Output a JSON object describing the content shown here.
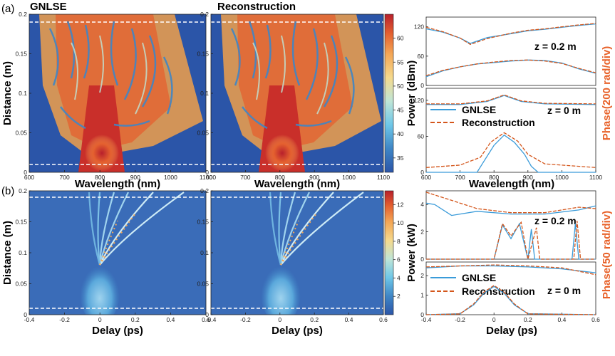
{
  "figure": {
    "panel_a_label": "(a)",
    "panel_b_label": "(b)",
    "left_title": "GNLSE",
    "middle_title": "Reconstruction"
  },
  "colors": {
    "gnlse": "#3a9bd9",
    "reconstruction": "#d4561b",
    "phase_axis": "#e8622a",
    "colormap": [
      "#2b55a8",
      "#3f86c6",
      "#6ec7e8",
      "#bfe5d6",
      "#f5d98c",
      "#f4a655",
      "#e4602f",
      "#b8202c"
    ]
  },
  "chart_data": [
    {
      "id": "a-gnlse",
      "type": "heatmap",
      "title": "GNLSE",
      "xlabel": "Wavelength (nm)",
      "ylabel": "Distance (m)",
      "xlim": [
        600,
        1100
      ],
      "ylim": [
        0,
        0.2
      ],
      "xticks": [
        "600",
        "700",
        "800",
        "900",
        "1000",
        "1100"
      ],
      "yticks": [
        "0",
        "0.05",
        "0.1",
        "0.15",
        "0.2"
      ],
      "dashed_lines_y": [
        0.01,
        0.19
      ]
    },
    {
      "id": "a-reconstruction",
      "type": "heatmap",
      "title": "Reconstruction",
      "xlabel": "Wavelength (nm)",
      "xlim": [
        600,
        1100
      ],
      "ylim": [
        0,
        0.2
      ],
      "xticks": [
        "600",
        "700",
        "800",
        "900",
        "1000",
        "1100"
      ],
      "yticks": [
        "0",
        "0.05",
        "0.1",
        "0.15",
        "0.2"
      ],
      "dashed_lines_y": [
        0.01,
        0.19
      ]
    },
    {
      "id": "a-colorbar",
      "type": "colorbar",
      "label": "Power (dBm)",
      "range": [
        32,
        65
      ],
      "ticks": [
        "35",
        "40",
        "45",
        "50",
        "55",
        "60"
      ]
    },
    {
      "id": "a-line-top",
      "type": "line",
      "annotation": "z = 0.2 m",
      "xlim": [
        600,
        1100
      ],
      "ylim": [
        0,
        140
      ],
      "yticks": [
        "0",
        "60",
        "120"
      ],
      "ylabel_right": "Phase(200 rad/div)",
      "series": [
        {
          "name": "GNLSE phase",
          "x": [
            600,
            650,
            700,
            730,
            780,
            850,
            900,
            950,
            1000,
            1050,
            1100
          ],
          "values": [
            116,
            109,
            97,
            86,
            98,
            106,
            112,
            115,
            119,
            123,
            126
          ]
        },
        {
          "name": "Reconstruction phase",
          "x": [
            600,
            650,
            700,
            730,
            780,
            850,
            900,
            950,
            1000,
            1050,
            1100
          ],
          "values": [
            119,
            110,
            97,
            84,
            96,
            107,
            113,
            116,
            120,
            124,
            127
          ]
        },
        {
          "name": "GNLSE power",
          "x": [
            600,
            650,
            700,
            750,
            800,
            850,
            900,
            950,
            1000,
            1050,
            1100
          ],
          "values": [
            18,
            30,
            38,
            44,
            47,
            50,
            52,
            51,
            46,
            34,
            25
          ]
        },
        {
          "name": "Reconstruction power",
          "x": [
            600,
            650,
            700,
            750,
            800,
            850,
            900,
            950,
            1000,
            1050,
            1100
          ],
          "values": [
            20,
            31,
            38,
            44,
            48,
            51,
            52,
            50,
            45,
            35,
            26
          ]
        }
      ]
    },
    {
      "id": "a-line-bottom",
      "type": "line",
      "annotation": "z = 0 m",
      "xlabel": "Wavelength (nm)",
      "xlim": [
        600,
        1100
      ],
      "ylim": [
        0,
        140
      ],
      "xticks": [
        "600",
        "700",
        "800",
        "900",
        "1000",
        "1100"
      ],
      "yticks": [
        "0",
        "60",
        "120"
      ],
      "legend": [
        "GNLSE",
        "Reconstruction"
      ],
      "series": [
        {
          "name": "GNLSE phase",
          "x": [
            600,
            700,
            780,
            830,
            880,
            950,
            1100
          ],
          "values": [
            113,
            113,
            118,
            128,
            118,
            114,
            113
          ]
        },
        {
          "name": "Reconstruction phase",
          "x": [
            600,
            700,
            780,
            830,
            880,
            950,
            1100
          ],
          "values": [
            114,
            114,
            119,
            129,
            119,
            115,
            114
          ]
        },
        {
          "name": "GNLSE power",
          "x": [
            600,
            750,
            770,
            800,
            830,
            860,
            890,
            910,
            930,
            1100
          ],
          "values": [
            0,
            0,
            18,
            45,
            62,
            50,
            30,
            10,
            0,
            0
          ]
        },
        {
          "name": "Reconstruction power",
          "x": [
            600,
            700,
            760,
            790,
            830,
            870,
            900,
            950,
            1100
          ],
          "values": [
            8,
            12,
            25,
            50,
            66,
            52,
            30,
            14,
            8
          ]
        }
      ]
    },
    {
      "id": "b-gnlse",
      "type": "heatmap",
      "xlabel": "Delay (ps)",
      "ylabel": "Distance (m)",
      "xlim": [
        -0.4,
        0.6
      ],
      "ylim": [
        0,
        0.2
      ],
      "xticks": [
        "-0.4",
        "-0.2",
        "0",
        "0.2",
        "0.4",
        "0.6"
      ],
      "yticks": [
        "0",
        "0.05",
        "0.1",
        "0.15",
        "0.2"
      ],
      "dashed_lines_y": [
        0.01,
        0.19
      ]
    },
    {
      "id": "b-reconstruction",
      "type": "heatmap",
      "xlabel": "Delay (ps)",
      "xlim": [
        -0.4,
        0.6
      ],
      "ylim": [
        0,
        0.2
      ],
      "xticks": [
        "-0.4",
        "-0.2",
        "0",
        "0.2",
        "0.4",
        "0.6"
      ],
      "yticks": [
        "0",
        "0.05",
        "0.1",
        "0.15",
        "0.2"
      ],
      "dashed_lines_y": [
        0.01,
        0.19
      ]
    },
    {
      "id": "b-colorbar",
      "type": "colorbar",
      "label": "Power (kW)",
      "range": [
        0,
        13.5
      ],
      "ticks": [
        "2",
        "4",
        "6",
        "8",
        "10",
        "12"
      ]
    },
    {
      "id": "b-line-top",
      "type": "line",
      "annotation": "z = 0.2 m",
      "xlim": [
        -0.4,
        0.6
      ],
      "ylim": [
        0,
        5
      ],
      "yticks": [
        "0",
        "2",
        "4"
      ],
      "ylabel_right": "Phase(50 rad/div)",
      "series": [
        {
          "name": "GNLSE phase",
          "x": [
            -0.4,
            -0.35,
            -0.25,
            -0.1,
            0.1,
            0.3,
            0.5,
            0.6
          ],
          "values": [
            4.1,
            4.0,
            3.2,
            3.5,
            3.3,
            3.3,
            3.6,
            3.9
          ]
        },
        {
          "name": "Reconstruction phase",
          "x": [
            -0.4,
            -0.35,
            -0.25,
            -0.1,
            0.1,
            0.3,
            0.5,
            0.6
          ],
          "values": [
            4.9,
            4.7,
            4.3,
            3.7,
            3.4,
            3.4,
            3.8,
            3.7
          ]
        },
        {
          "name": "GNLSE power",
          "x": [
            -0.4,
            0.0,
            0.05,
            0.1,
            0.15,
            0.2,
            0.22,
            0.24,
            0.3,
            0.46,
            0.48,
            0.5,
            0.6
          ],
          "values": [
            0,
            0,
            2.5,
            1.5,
            2.6,
            0,
            2.2,
            0,
            0,
            0,
            2.6,
            0,
            0
          ]
        },
        {
          "name": "Reconstruction power",
          "x": [
            -0.4,
            0.0,
            0.05,
            0.1,
            0.16,
            0.2,
            0.25,
            0.27,
            0.3,
            0.47,
            0.49,
            0.51,
            0.6
          ],
          "values": [
            0,
            0,
            2.6,
            1.7,
            2.7,
            0,
            2.3,
            0,
            0,
            0,
            2.8,
            0,
            0
          ]
        }
      ]
    },
    {
      "id": "b-line-bottom",
      "type": "line",
      "annotation": "z = 0 m",
      "xlabel": "Delay (ps)",
      "xlim": [
        -0.4,
        0.6
      ],
      "ylim": [
        0,
        2.7
      ],
      "xticks": [
        "-0.4",
        "-0.2",
        "0",
        "0.2",
        "0.4",
        "0.6"
      ],
      "yticks": [
        "0",
        "1",
        "2"
      ],
      "legend": [
        "GNLSE",
        "Reconstruction"
      ],
      "series": [
        {
          "name": "GNLSE phase",
          "x": [
            -0.4,
            -0.2,
            0.0,
            0.2,
            0.4,
            0.6
          ],
          "values": [
            2.4,
            2.5,
            2.5,
            2.45,
            2.35,
            2.15
          ]
        },
        {
          "name": "Reconstruction phase",
          "x": [
            -0.4,
            -0.2,
            0.0,
            0.2,
            0.4,
            0.6
          ],
          "values": [
            2.45,
            2.5,
            2.55,
            2.5,
            2.4,
            2.05
          ]
        },
        {
          "name": "GNLSE power",
          "x": [
            -0.4,
            -0.2,
            -0.12,
            -0.06,
            0.0,
            0.06,
            0.12,
            0.2,
            0.6
          ],
          "values": [
            0,
            0.05,
            0.5,
            1.1,
            1.45,
            1.1,
            0.5,
            0.05,
            0
          ]
        },
        {
          "name": "Reconstruction power",
          "x": [
            -0.4,
            -0.2,
            -0.12,
            -0.06,
            0.0,
            0.06,
            0.12,
            0.2,
            0.6
          ],
          "values": [
            0,
            0.04,
            0.55,
            1.15,
            1.5,
            1.15,
            0.55,
            0.04,
            0
          ]
        }
      ]
    }
  ]
}
